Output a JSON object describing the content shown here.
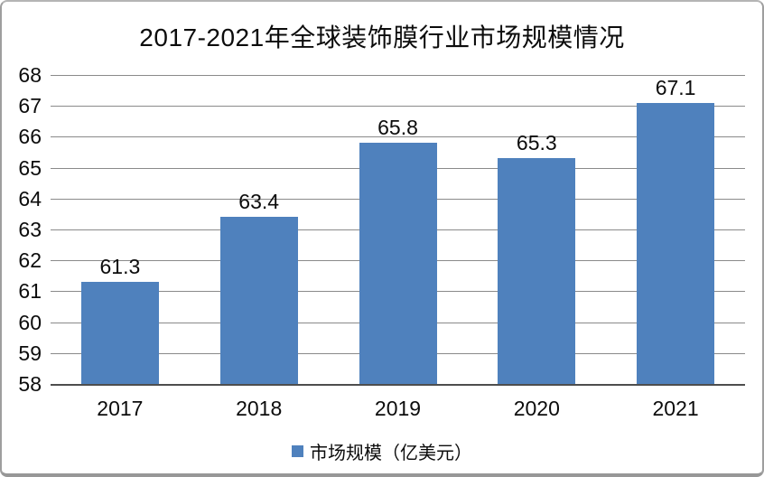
{
  "chart_data": {
    "type": "bar",
    "title": "2017-2021年全球装饰膜行业市场规模情况",
    "categories": [
      "2017",
      "2018",
      "2019",
      "2020",
      "2021"
    ],
    "values": [
      61.3,
      63.4,
      65.8,
      65.3,
      67.1
    ],
    "series_name": "市场规模（亿美元）",
    "xlabel": "",
    "ylabel": "",
    "ylim": [
      58,
      68
    ],
    "yticks": [
      68,
      67,
      66,
      65,
      64,
      63,
      62,
      61,
      60,
      59,
      58
    ],
    "grid": true,
    "legend_position": "bottom",
    "bar_color": "#4F81BD"
  },
  "colors": {
    "bar": "#4F81BD",
    "gridline": "#8a8a8a",
    "axis_line": "#4e4e4e",
    "text": "#0c0c0c",
    "frame_border": "#9e9e9e",
    "background": "#ffffff"
  }
}
